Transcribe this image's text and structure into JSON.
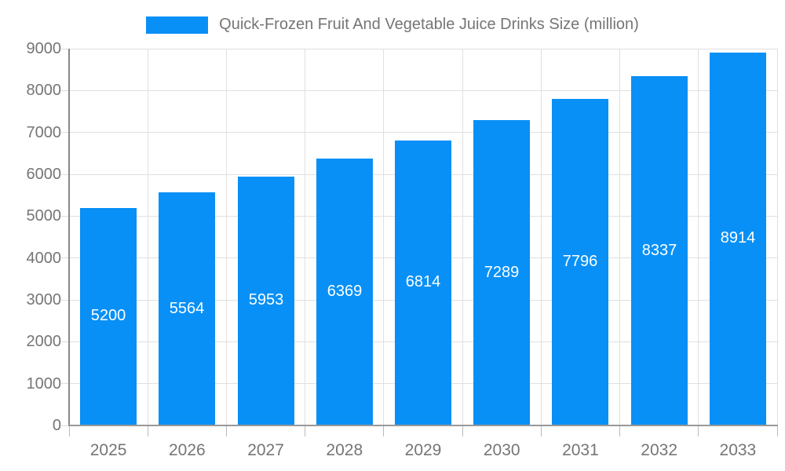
{
  "legend": {
    "label": "Quick-Frozen Fruit And Vegetable Juice Drinks Size (million)",
    "swatch_color": "#0890f6"
  },
  "chart_data": {
    "type": "bar",
    "title": "Quick-Frozen Fruit And Vegetable Juice Drinks Size (million)",
    "categories": [
      "2025",
      "2026",
      "2027",
      "2028",
      "2029",
      "2030",
      "2031",
      "2032",
      "2033"
    ],
    "values": [
      5200,
      5564,
      5953,
      6369,
      6814,
      7289,
      7796,
      8337,
      8914
    ],
    "xlabel": "",
    "ylabel": "",
    "ylim": [
      0,
      9000
    ],
    "yticks": [
      0,
      1000,
      2000,
      3000,
      4000,
      5000,
      6000,
      7000,
      8000,
      9000
    ],
    "grid": true,
    "legend_position": "top",
    "bar_color": "#0890f6",
    "value_label_color": "#ffffff",
    "axis_text_color": "#757575"
  }
}
